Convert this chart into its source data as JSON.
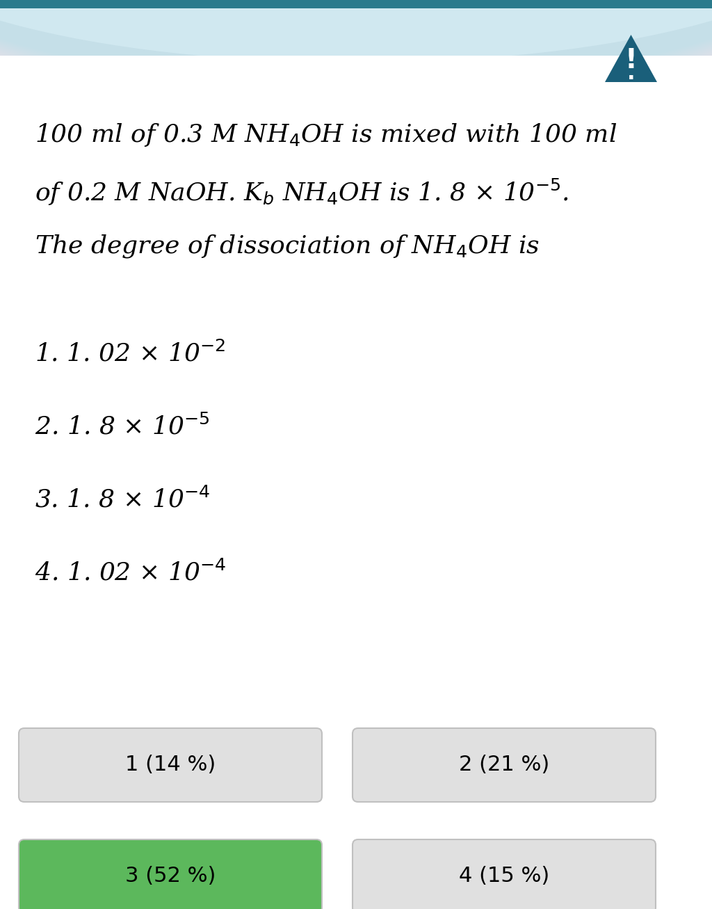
{
  "background_color": "#ffffff",
  "header_bg_color": "#e8f4f8",
  "top_stripe_color": "#2a7a8c",
  "triangle_fill": "#1a5f7a",
  "triangle_edge": "#1a5f7a",
  "question_lines": [
    "100 ml of 0.3 M NH$_4$OH is mixed with 100 ml",
    "of 0.2 M NaOH. K$_b$ NH$_4$OH is 1. 8 × 10$^{-5}$.",
    "The degree of dissociation of NH$_4$OH is"
  ],
  "options": [
    {
      "label": "1. 1. 02 × 10$^{-2}$"
    },
    {
      "label": "2. 1. 8 × 10$^{-5}$"
    },
    {
      "label": "3. 1. 8 × 10$^{-4}$"
    },
    {
      "label": "4. 1. 02 × 10$^{-4}$"
    }
  ],
  "buttons": [
    {
      "label": "1 (14 %)",
      "bg": "#e0e0e0",
      "fg": "#000000",
      "col": 0,
      "row": 0
    },
    {
      "label": "2 (21 %)",
      "bg": "#e0e0e0",
      "fg": "#000000",
      "col": 1,
      "row": 0
    },
    {
      "label": "3 (52 %)",
      "bg": "#5cb85c",
      "fg": "#000000",
      "col": 0,
      "row": 1
    },
    {
      "label": "4 (15 %)",
      "bg": "#e0e0e0",
      "fg": "#000000",
      "col": 1,
      "row": 1
    }
  ],
  "font_size_q": 26,
  "font_size_opt": 26,
  "font_size_btn": 22
}
